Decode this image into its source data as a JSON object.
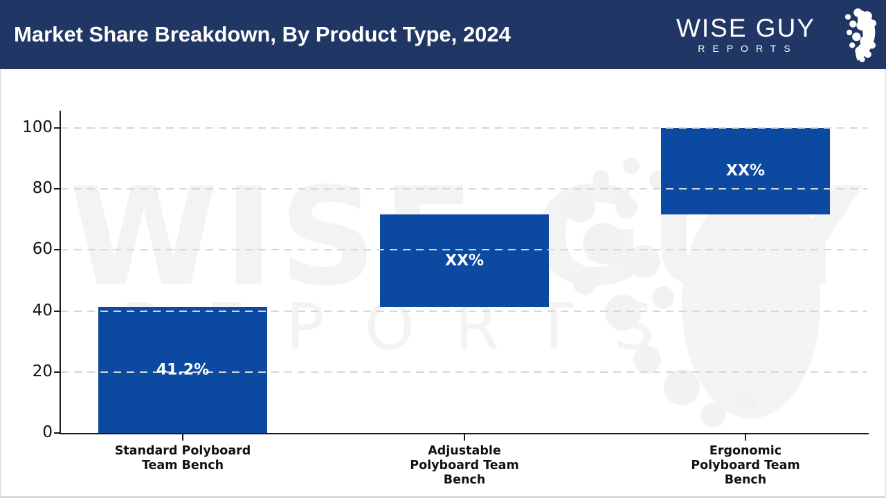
{
  "header": {
    "title": "Market Share Breakdown, By Product Type, 2024",
    "bg_color": "#203664",
    "logo": {
      "line1": "WISE GUY",
      "line2": "REPORTS"
    }
  },
  "watermark": {
    "line1": "WISE GUY",
    "line2": "REPORTS"
  },
  "chart_data": {
    "type": "bar",
    "subtype": "floating-segment-waterfall",
    "title": "Market Share Breakdown, By Product Type, 2024",
    "xlabel": "",
    "ylabel": "",
    "ylim": [
      0,
      105.7
    ],
    "grid": true,
    "legend": false,
    "bar_color": "#0c49a1",
    "value_label_color": "#ffffff",
    "y_ticks": [
      0,
      20,
      40,
      60,
      80,
      100
    ],
    "categories": [
      "Standard Polyboard Team Bench",
      "Adjustable Polyboard Team Bench",
      "Ergonomic Polyboard Team Bench"
    ],
    "bars": [
      {
        "category": "Standard Polyboard Team Bench",
        "category_lines": [
          "Standard Polyboard",
          "Team Bench"
        ],
        "start": 0,
        "end": 41.2,
        "value_label": "41.2%"
      },
      {
        "category": "Adjustable Polyboard Team Bench",
        "category_lines": [
          "Adjustable",
          "Polyboard Team",
          "Bench"
        ],
        "start": 41.2,
        "end": 71.7,
        "value_label": "XX%"
      },
      {
        "category": "Ergonomic Polyboard Team Bench",
        "category_lines": [
          "Ergonomic",
          "Polyboard Team",
          "Bench"
        ],
        "start": 71.7,
        "end": 100,
        "value_label": "XX%"
      }
    ]
  }
}
